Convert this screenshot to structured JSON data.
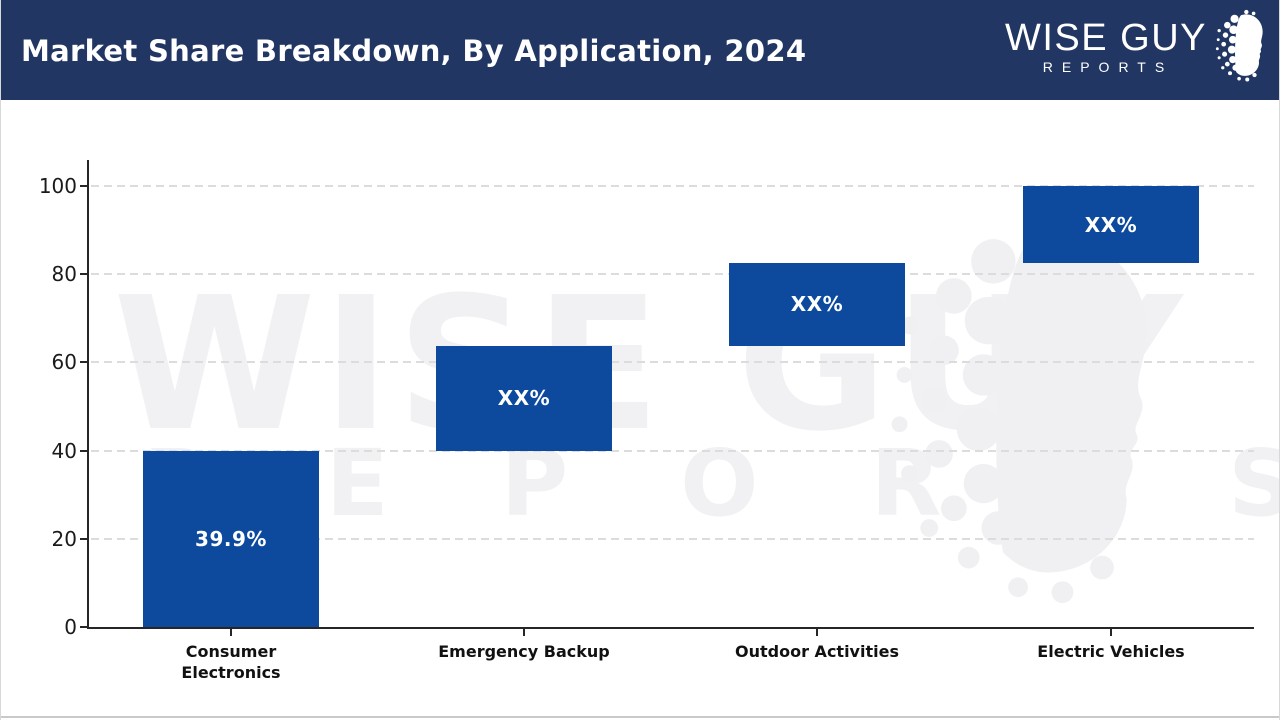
{
  "header": {
    "title": "Market Share Breakdown, By Application, 2024",
    "bg_color": "#213663",
    "brand": {
      "line1": "WISE GUY",
      "line2": "REPORTS",
      "icon": "dotted-head-profile-icon"
    }
  },
  "watermark": {
    "line1": "WISE GUY",
    "line2": "R E P O R T S",
    "icon": "dotted-head-profile-watermark",
    "color": "#f1f1f4"
  },
  "chart_data": {
    "type": "bar",
    "variant": "waterfall",
    "title": "Market Share Breakdown, By Application, 2024",
    "categories": [
      "Consumer Electronics",
      "Emergency Backup",
      "Outdoor Activities",
      "Electric Vehicles"
    ],
    "categories_display": [
      [
        "Consumer",
        "Electronics"
      ],
      [
        "Emergency Backup"
      ],
      [
        "Outdoor Activities"
      ],
      [
        "Electric Vehicles"
      ]
    ],
    "series": [
      {
        "name": "Market share (%)",
        "segments": [
          {
            "category": "Consumer Electronics",
            "start": 0,
            "end": 39.9,
            "label": "39.9%"
          },
          {
            "category": "Emergency Backup",
            "start": 39.9,
            "end": 63.8,
            "label": "XX%"
          },
          {
            "category": "Outdoor Activities",
            "start": 63.8,
            "end": 82.5,
            "label": "XX%"
          },
          {
            "category": "Electric Vehicles",
            "start": 82.5,
            "end": 100,
            "label": "XX%"
          }
        ]
      }
    ],
    "xlabel": "",
    "ylabel": "",
    "ylim": [
      0,
      105
    ],
    "yticks": [
      0,
      20,
      40,
      60,
      80,
      100
    ],
    "grid": "horizontal-dashed",
    "legend": "none",
    "bar_color": "#0d4a9e",
    "bar_label_color": "#ffffff",
    "axis_color": "#262626",
    "tick_label_color": "#1a1a1a",
    "gridline_color": "#dcdcdc"
  }
}
